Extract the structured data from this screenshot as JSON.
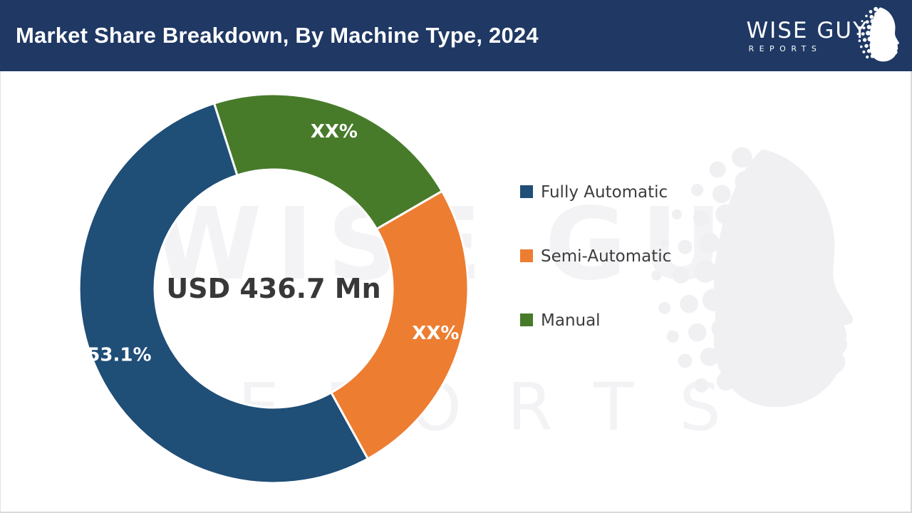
{
  "header": {
    "title": "Market Share Breakdown, By Machine Type, 2024",
    "background_color": "#1F3864",
    "brand": {
      "name": "WISE GUY",
      "sub": "REPORTS"
    }
  },
  "watermark": {
    "line1": "WISE GUY",
    "line2": "REPORTS"
  },
  "chart": {
    "center_label": "USD 436.7 Mn",
    "segments": [
      {
        "name": "Manual",
        "value": 21.6,
        "label": "XX%",
        "color": "#477B2A"
      },
      {
        "name": "Semi-Automatic",
        "value": 25.3,
        "label": "XX%",
        "color": "#ED7D31"
      },
      {
        "name": "Fully Automatic",
        "value": 53.1,
        "label": "53.1%",
        "color": "#1F4E77"
      }
    ]
  },
  "legend": {
    "items": [
      {
        "label": "Fully Automatic",
        "color": "#1F4E77"
      },
      {
        "label": "Semi-Automatic",
        "color": "#ED7D31"
      },
      {
        "label": "Manual",
        "color": "#477B2A"
      }
    ]
  },
  "chart_data": {
    "type": "pie",
    "subtype": "donut",
    "title": "Market Share Breakdown, By Machine Type, 2024",
    "center_label": "USD 436.7 Mn",
    "categories": [
      "Fully Automatic",
      "Semi-Automatic",
      "Manual"
    ],
    "values": [
      53.1,
      25.3,
      21.6
    ],
    "displayed_slice_labels": [
      "53.1%",
      "XX%",
      "XX%"
    ],
    "colors": [
      "#1F4E77",
      "#ED7D31",
      "#477B2A"
    ],
    "legend_position": "right",
    "units": "percent of USD 436.7 Mn market"
  }
}
